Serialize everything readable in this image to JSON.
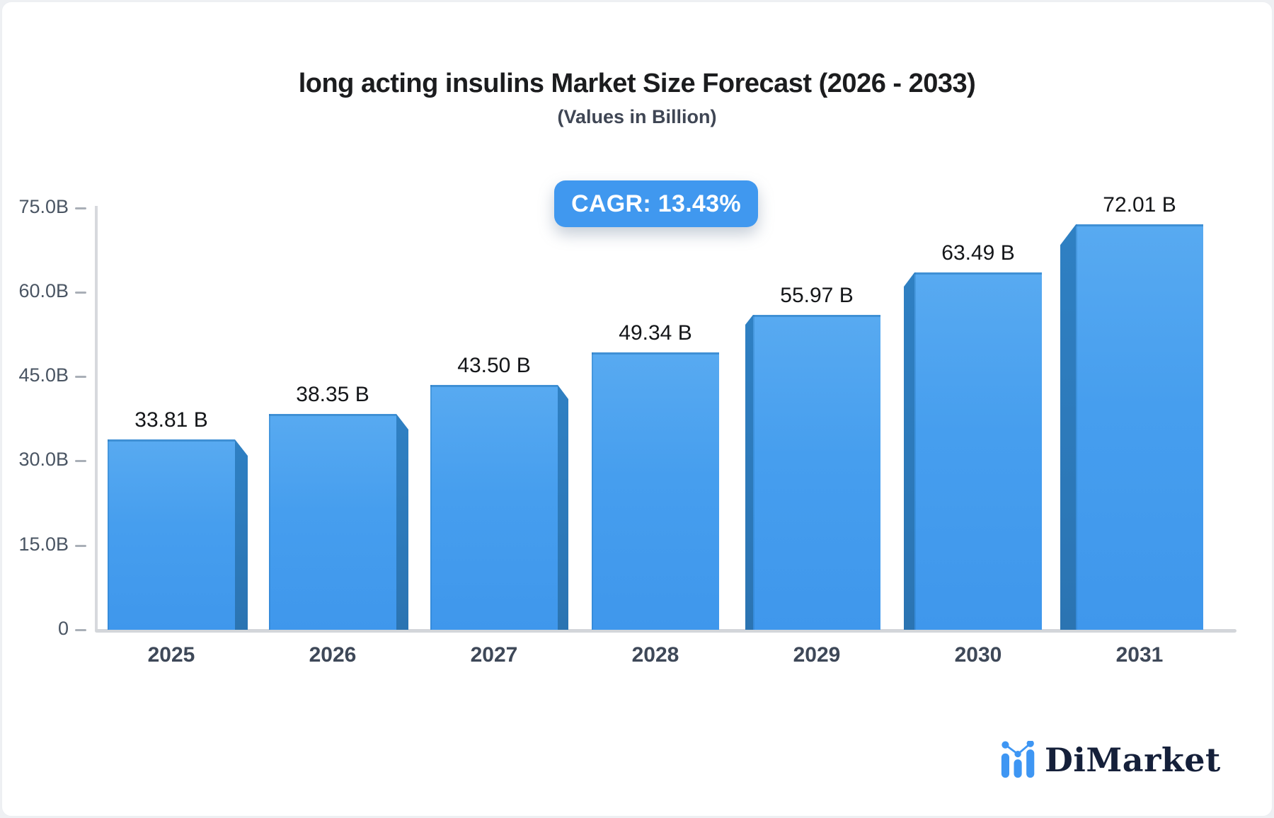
{
  "page": {
    "background": "#eef0f3",
    "card_background": "#ffffff"
  },
  "header": {
    "title": "long acting insulins Market Size Forecast (2026 - 2033)",
    "subtitle": "(Values in Billion)"
  },
  "badge": {
    "label": "CAGR: 13.43%",
    "background": "#4098ef",
    "text_color": "#ffffff"
  },
  "chart_data": {
    "type": "bar",
    "title": "long acting insulins Market Size Forecast (2026 - 2033)",
    "subtitle": "(Values in Billion)",
    "categories": [
      "2025",
      "2026",
      "2027",
      "2028",
      "2029",
      "2030",
      "2031"
    ],
    "values": [
      33.81,
      38.35,
      43.5,
      49.34,
      55.97,
      63.49,
      72.01
    ],
    "bar_labels": [
      "33.81 B",
      "38.35 B",
      "43.50 B",
      "49.34 B",
      "55.97 B",
      "63.49 B",
      "72.01 B"
    ],
    "xlabel": "",
    "ylabel": "",
    "ylim": [
      0,
      75
    ],
    "y_ticks": [
      {
        "label": "75.0B",
        "value": 75
      },
      {
        "label": "60.0B",
        "value": 60
      },
      {
        "label": "45.0B",
        "value": 45
      },
      {
        "label": "30.0B",
        "value": 30
      },
      {
        "label": "15.0B",
        "value": 15
      },
      {
        "label": "0",
        "value": 0
      }
    ],
    "grid": false,
    "legend": false,
    "bar_color": "#459ded",
    "bar_side_color": "#2d7ab8",
    "style": "3d-extruded-bars, side face toward chart center"
  },
  "logo": {
    "text": "DiMarket",
    "icon": "dimarket-bars-icon",
    "text_color": "#15203a",
    "icon_color": "#3e96f3"
  }
}
